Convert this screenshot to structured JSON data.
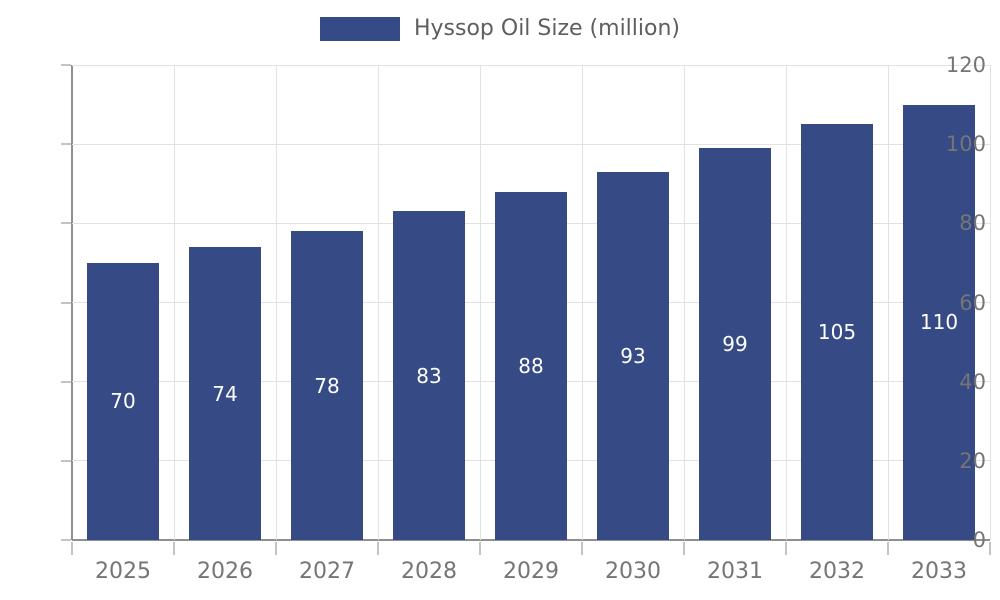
{
  "legend": {
    "label": "Hyssop Oil Size (million)"
  },
  "chart_data": {
    "type": "bar",
    "title": "",
    "xlabel": "",
    "ylabel": "",
    "categories": [
      "2025",
      "2026",
      "2027",
      "2028",
      "2029",
      "2030",
      "2031",
      "2032",
      "2033"
    ],
    "series": [
      {
        "name": "Hyssop Oil Size (million)",
        "values": [
          70,
          74,
          78,
          83,
          88,
          93,
          99,
          105,
          110
        ]
      }
    ],
    "data_labels_shown": true,
    "ylim": [
      0,
      120
    ],
    "yticks": [
      0,
      20,
      40,
      60,
      80,
      100,
      120
    ],
    "grid": true,
    "legend_position": "top-center",
    "colors": {
      "bar": "#364a86",
      "grid": "#e2e2e2",
      "spine": "#8f8f8f",
      "tick": "#c4c4c4",
      "axis_label": "#757575",
      "bar_value_label": "#ffffff",
      "legend_text": "#5e5e5e",
      "background": "#ffffff"
    }
  }
}
